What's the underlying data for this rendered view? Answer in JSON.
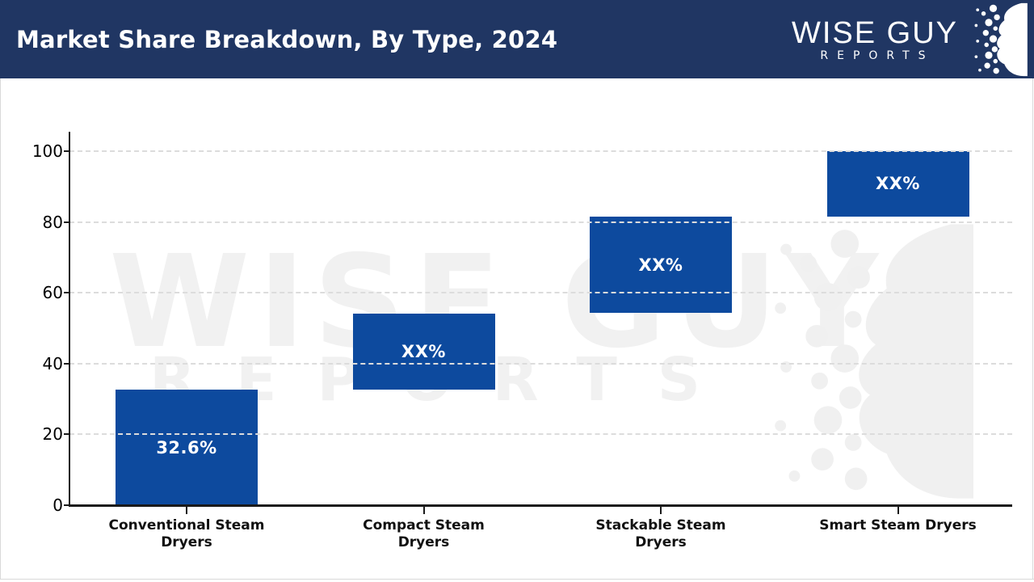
{
  "header": {
    "title": "Market Share Breakdown, By Type, 2024",
    "bg_color": "#203663",
    "logo": {
      "line1": "WISE GUY",
      "line2": "REPORTS"
    }
  },
  "watermark": {
    "line1": "WISE GUY",
    "line2": "REPORTS"
  },
  "chart_data": {
    "type": "bar",
    "variant": "floating-waterfall",
    "title": "Market Share Breakdown, By Type, 2024",
    "categories": [
      "Conventional Steam Dryers",
      "Compact Steam Dryers",
      "Stackable Steam Dryers",
      "Smart Steam Dryers"
    ],
    "series": [
      {
        "name": "Market share (%)",
        "segments": [
          {
            "start": 0,
            "end": 32.6,
            "label": "32.6%"
          },
          {
            "start": 32.6,
            "end": 54.2,
            "label": "XX%"
          },
          {
            "start": 54.4,
            "end": 81.4,
            "label": "XX%"
          },
          {
            "start": 81.6,
            "end": 100,
            "label": "XX%"
          }
        ]
      }
    ],
    "xlabel": "",
    "ylabel": "",
    "ylim": [
      0,
      100
    ],
    "yticks": [
      0,
      20,
      40,
      60,
      80,
      100
    ],
    "grid": "horizontal-dashed",
    "legend": "none",
    "bar_color": "#0d4a9e",
    "bar_label_color": "#ffffff",
    "axis_color": "#1a1a1a",
    "grid_color": "#dcdcdc"
  }
}
